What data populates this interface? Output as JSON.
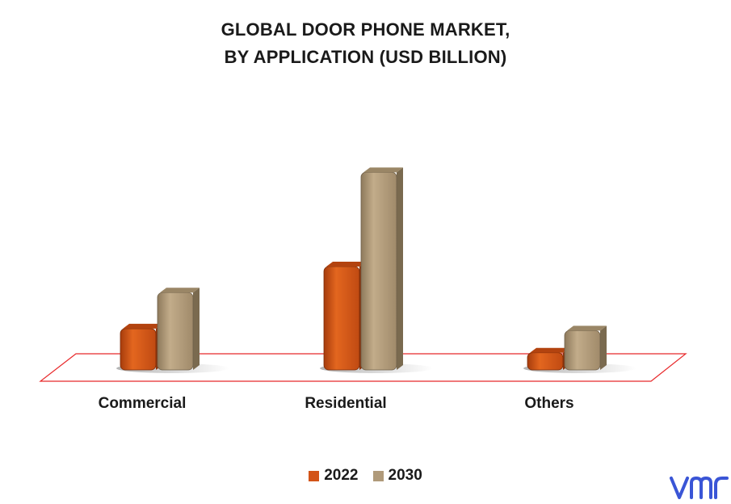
{
  "chart_data": {
    "type": "bar",
    "title": "GLOBAL DOOR PHONE MARKET,",
    "subtitle": "BY APPLICATION (USD BILLION)",
    "categories": [
      "Commercial",
      "Residential",
      "Others"
    ],
    "series": [
      {
        "name": "2022",
        "values": [
          1.15,
          2.7,
          0.55
        ]
      },
      {
        "name": "2030",
        "values": [
          2.05,
          5.05,
          1.1
        ]
      }
    ],
    "ylim": [
      0,
      5.5
    ],
    "grid": false,
    "legend_position": "bottom",
    "colors": {
      "2022": "#d35418",
      "2030": "#b09a7a"
    },
    "floor_color": "#e8292b"
  },
  "logo": {
    "text": "vmr",
    "color": "#3a55d6"
  }
}
